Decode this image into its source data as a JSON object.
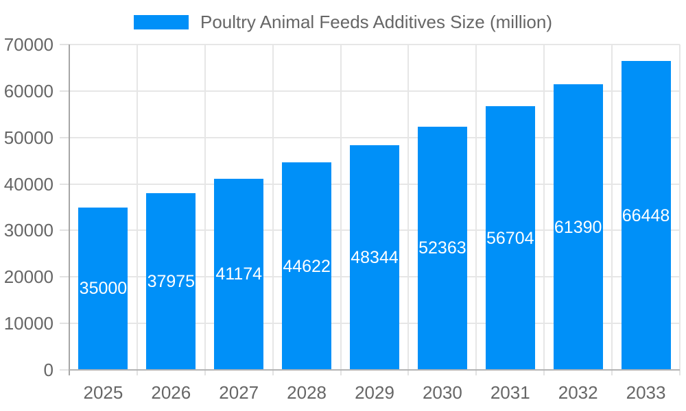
{
  "chart_data": {
    "type": "bar",
    "title": "Poultry Animal Feeds Additives Size (million)",
    "categories": [
      "2025",
      "2026",
      "2027",
      "2028",
      "2029",
      "2030",
      "2031",
      "2032",
      "2033"
    ],
    "values": [
      35000,
      37975,
      41174,
      44622,
      48344,
      52363,
      56704,
      61390,
      66448
    ],
    "xlabel": "",
    "ylabel": "",
    "ylim": [
      0,
      70000
    ],
    "ytick_step": 10000,
    "grid": true,
    "legend_position": "top-center",
    "bar_color": "#0090f8",
    "value_label_color": "#ffffff",
    "axis_text_color": "#666666"
  }
}
